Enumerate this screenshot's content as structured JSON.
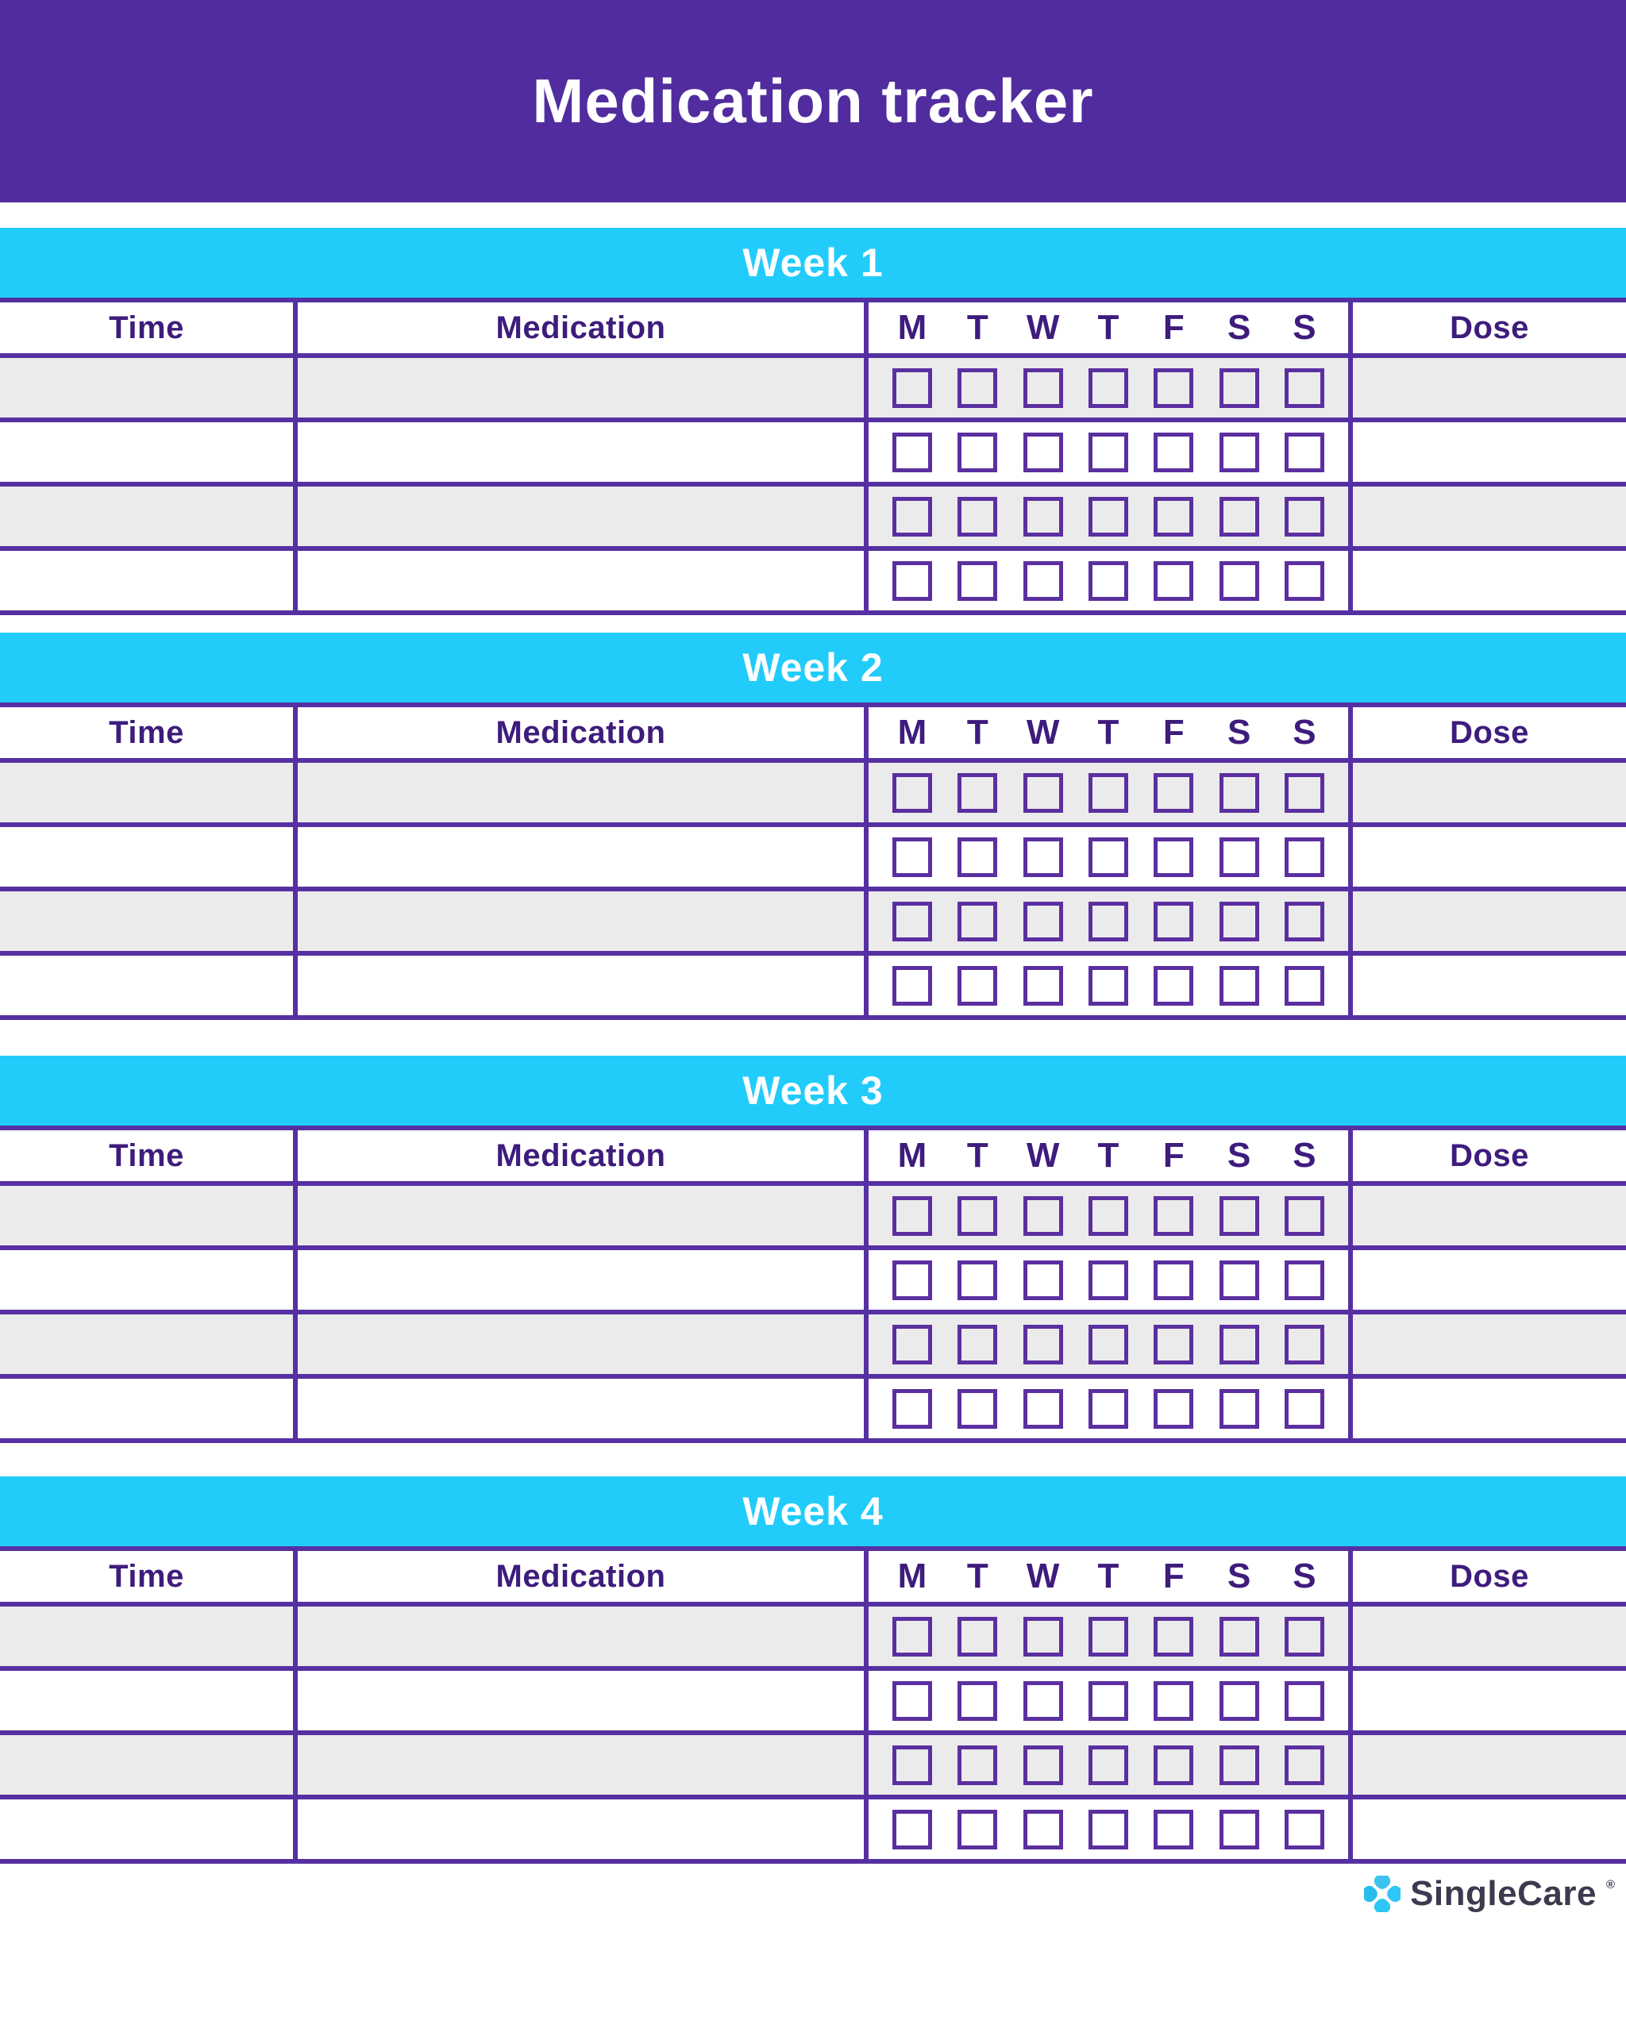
{
  "page_title": "Medication tracker",
  "weeks": [
    {
      "title": "Week 1"
    },
    {
      "title": "Week 2"
    },
    {
      "title": "Week 3"
    },
    {
      "title": "Week 4"
    }
  ],
  "table_headers": {
    "time": "Time",
    "medication": "Medication",
    "dose": "Dose"
  },
  "day_letters": [
    "M",
    "T",
    "W",
    "T",
    "F",
    "S",
    "S"
  ],
  "rows_per_week": 4,
  "footer": {
    "brand": "SingleCare",
    "registered_mark": "®"
  },
  "colors": {
    "header_banner_purple": "#512C9E",
    "week_bar_cyan": "#22CCFA",
    "table_line_purple": "#5630A2",
    "header_text_purple": "#3E1C7C",
    "checkbox_border_purple": "#5B2FA0",
    "alt_row_gray": "#EBEBEB",
    "logo_text": "#3B3A4E",
    "logo_icon_cyan": "#2EC6F4"
  }
}
